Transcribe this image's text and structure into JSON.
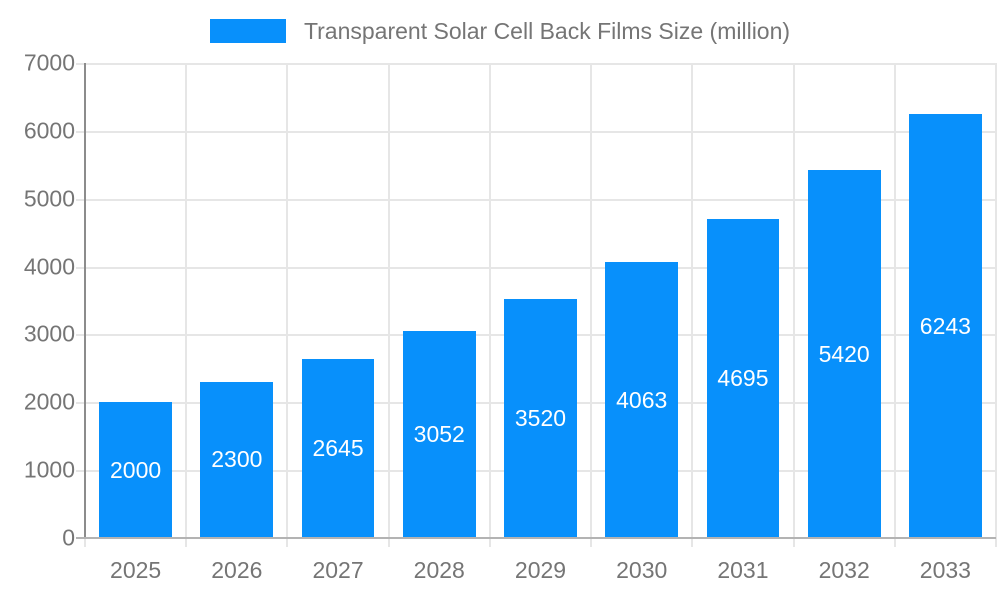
{
  "legend": {
    "label": "Transparent Solar Cell Back Films Size (million)"
  },
  "colors": {
    "bar": "#0890FB",
    "text": "#757575",
    "grid_line": "#E6E6E6",
    "x_axis_line": "#B3B3B3",
    "y_axis_line": "#8C8C8C",
    "bar_label": "#FFFFFF",
    "background": "#FFFFFF"
  },
  "chart_data": {
    "type": "bar",
    "title": "Transparent Solar Cell Back Films Size (million)",
    "categories": [
      "2025",
      "2026",
      "2027",
      "2028",
      "2029",
      "2030",
      "2031",
      "2032",
      "2033"
    ],
    "values": [
      2000,
      2300,
      2645,
      3052,
      3520,
      4063,
      4695,
      5420,
      6243
    ],
    "xlabel": "",
    "ylabel": "",
    "ylim": [
      0,
      7000
    ],
    "y_ticks": [
      0,
      1000,
      2000,
      3000,
      4000,
      5000,
      6000,
      7000
    ],
    "grid": true,
    "legend_position": "top",
    "bar_label_position": "inside-center",
    "bar_width_fraction": 0.72
  }
}
